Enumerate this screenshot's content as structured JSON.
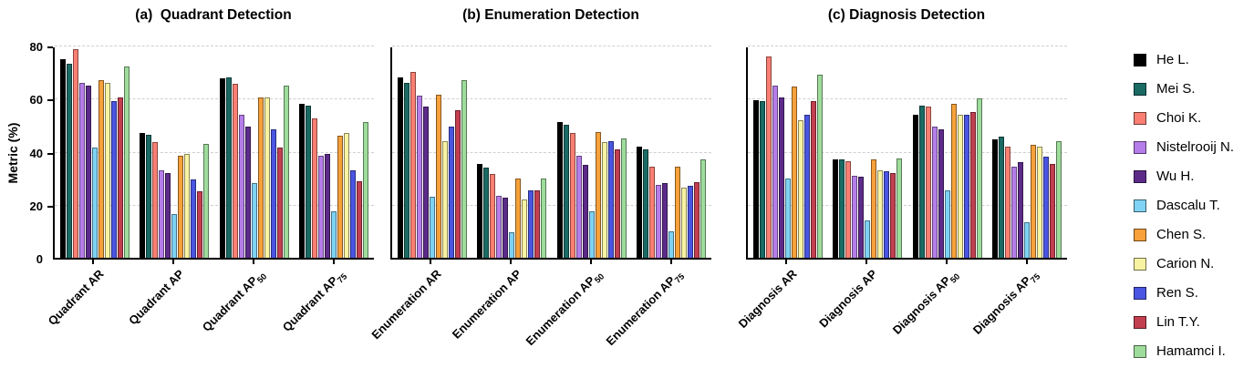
{
  "chart": {
    "ylabel": "Metric (%)"
  },
  "chart_data": {
    "type": "bar",
    "title": "",
    "ylabel": "Metric (%)",
    "xlabel": "",
    "ylim": [
      0,
      80
    ],
    "yticks": [
      0,
      20,
      40,
      60,
      80
    ],
    "grid": "dashed-horizontal",
    "legend_position": "right",
    "series": [
      {
        "name": "He L.",
        "color": "#000000"
      },
      {
        "name": "Mei S.",
        "color": "#1b6a64"
      },
      {
        "name": "Choi K.",
        "color": "#fa7f72"
      },
      {
        "name": "Nistelrooij N.",
        "color": "#b57de9"
      },
      {
        "name": "Wu H.",
        "color": "#5c2b8a"
      },
      {
        "name": "Dascalu T.",
        "color": "#7ed2f3"
      },
      {
        "name": "Chen S.",
        "color": "#f6a13a"
      },
      {
        "name": "Carion N.",
        "color": "#f8f3a2"
      },
      {
        "name": "Ren S.",
        "color": "#4a55e2"
      },
      {
        "name": "Lin T.Y.",
        "color": "#c23f50"
      },
      {
        "name": "Hamamci I.",
        "color": "#9edc9c"
      }
    ],
    "panels": [
      {
        "title": "(a)  Quadrant Detection",
        "categories": [
          {
            "text": "Quadrant AR",
            "sub": ""
          },
          {
            "text": "Quadrant AP",
            "sub": ""
          },
          {
            "text": "Quadrant AP",
            "sub": "50"
          },
          {
            "text": "Quadrant AP",
            "sub": "75"
          }
        ],
        "values": [
          [
            75,
            73,
            78.5,
            66,
            65,
            41.5,
            67,
            66,
            59,
            60.5,
            72
          ],
          [
            47,
            46.5,
            43.5,
            33,
            32,
            16.5,
            38.5,
            39,
            29.5,
            25,
            43
          ],
          [
            67.5,
            68,
            65.5,
            54,
            49.5,
            28,
            60.5,
            60.5,
            48.5,
            41.5,
            65
          ],
          [
            58,
            57.5,
            52.5,
            38.5,
            39,
            17.5,
            46,
            47,
            33,
            29,
            51
          ]
        ]
      },
      {
        "title": "(b) Enumeration Detection",
        "categories": [
          {
            "text": "Enumeration AR",
            "sub": ""
          },
          {
            "text": "Enumeration AP",
            "sub": ""
          },
          {
            "text": "Enumeration AP",
            "sub": "50"
          },
          {
            "text": "Enumeration AP",
            "sub": "75"
          }
        ],
        "values": [
          [
            68,
            66,
            70,
            61,
            57,
            23,
            61.5,
            44,
            49.5,
            55.5,
            67
          ],
          [
            35.5,
            34,
            31.5,
            23.5,
            22.5,
            9.5,
            30,
            22,
            25.5,
            25.5,
            30
          ],
          [
            51,
            50,
            47,
            38.5,
            35,
            17.5,
            47.5,
            43.5,
            44,
            41,
            45
          ],
          [
            42,
            41,
            34.5,
            27.5,
            28,
            10,
            34.5,
            26.5,
            27,
            28.5,
            37
          ]
        ]
      },
      {
        "title": "(c) Diagnosis Detection",
        "categories": [
          {
            "text": "Diagnosis AR",
            "sub": ""
          },
          {
            "text": "Diagnosis AP",
            "sub": ""
          },
          {
            "text": "Diagnosis AP",
            "sub": "50"
          },
          {
            "text": "Diagnosis AP",
            "sub": "75"
          }
        ],
        "values": [
          [
            59.5,
            59,
            76,
            65,
            60.5,
            30,
            64.5,
            52,
            54,
            59,
            69
          ],
          [
            37,
            37,
            36.5,
            31,
            30.5,
            14,
            37,
            33,
            32.5,
            32,
            37.5
          ],
          [
            54,
            57.5,
            57,
            49.5,
            48.5,
            25.5,
            58,
            54,
            54,
            55,
            60
          ],
          [
            44.5,
            45.5,
            42,
            34.5,
            36,
            13.5,
            42.5,
            42,
            38,
            35.5,
            44
          ]
        ]
      }
    ]
  }
}
